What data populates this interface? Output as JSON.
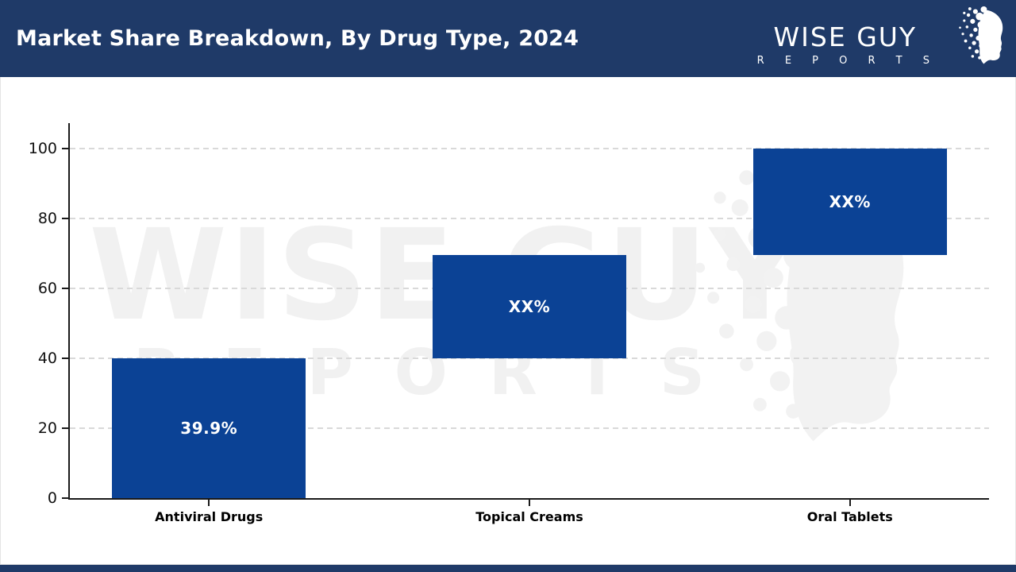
{
  "header": {
    "title": "Market Share Breakdown, By Drug Type, 2024",
    "bg_color": "#1f3a68",
    "logo": {
      "line1": "WISE GUY",
      "line2": "R E P O R T S"
    }
  },
  "watermark": {
    "line1": "WISE GUY",
    "line2": "REPORTS"
  },
  "chart_data": {
    "type": "bar",
    "subtype": "floating-waterfall",
    "title": "Market Share Breakdown, By Drug Type, 2024",
    "xlabel": "",
    "ylabel": "",
    "categories": [
      "Antiviral Drugs",
      "Topical Creams",
      "Oral Tablets"
    ],
    "segments": [
      {
        "category": "Antiviral Drugs",
        "start": 0,
        "end": 39.9,
        "label": "39.9%"
      },
      {
        "category": "Topical Creams",
        "start": 40,
        "end": 69.5,
        "label": "XX%"
      },
      {
        "category": "Oral Tablets",
        "start": 69.5,
        "end": 100,
        "label": "XX%"
      }
    ],
    "yticks": [
      0,
      20,
      40,
      60,
      80,
      100
    ],
    "ylim": [
      0,
      107.3
    ],
    "grid": true,
    "legend": false,
    "bar_color": "#0b4295",
    "bar_label_color": "#ffffff",
    "grid_color": "#d9d9d9",
    "axis_color": "#1a1a1a"
  },
  "footer": {
    "bar_color": "#1f3a68"
  }
}
